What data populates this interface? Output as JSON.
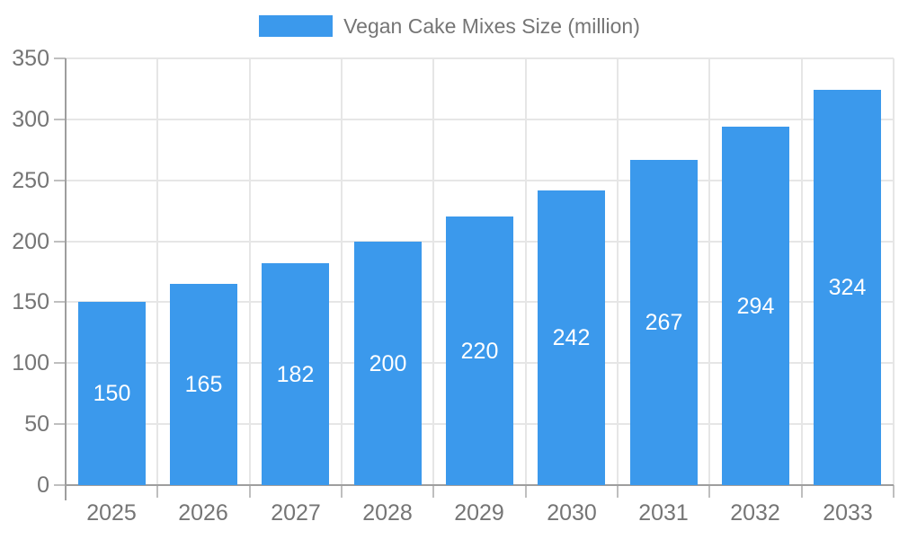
{
  "chart_data": {
    "type": "bar",
    "title": "Vegan Cake Mixes Size (million)",
    "categories": [
      "2025",
      "2026",
      "2027",
      "2028",
      "2029",
      "2030",
      "2031",
      "2032",
      "2033"
    ],
    "values": [
      150,
      165,
      182,
      200,
      220,
      242,
      267,
      294,
      324
    ],
    "series": [
      {
        "name": "Vegan Cake Mixes Size (million)",
        "values": [
          150,
          165,
          182,
          200,
          220,
          242,
          267,
          294,
          324
        ]
      }
    ],
    "xlabel": "",
    "ylabel": "",
    "ylim": [
      0,
      350
    ],
    "ytick_step": 50,
    "y_tick_labels": [
      "0",
      "50",
      "100",
      "150",
      "200",
      "250",
      "300",
      "350"
    ],
    "grid": true,
    "legend_position": "top",
    "bar_value_labels_visible": true,
    "colors": {
      "bar": "#3B99EC",
      "bar_label": "#FFFFFF",
      "axis_line": "#9E9E9E",
      "gridline": "#E6E6E6",
      "tick": "#BFBFBF",
      "text": "#757575",
      "background": "#FFFFFF"
    }
  }
}
